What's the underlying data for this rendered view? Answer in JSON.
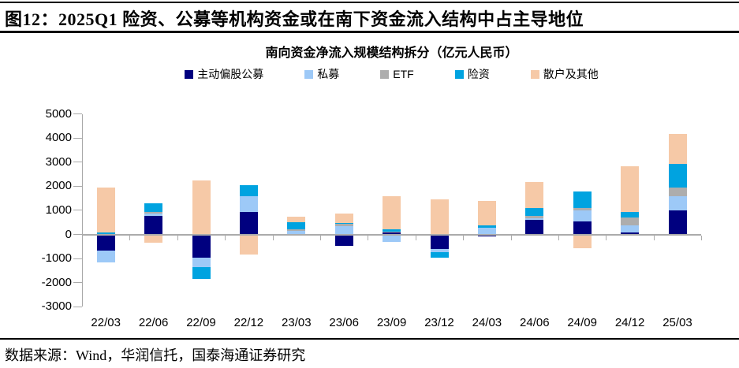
{
  "page": {
    "figure_title": "图12：2025Q1 险资、公募等机构资金或在南下资金流入结构中占主导地位",
    "source_note": "数据来源：Wind，华润信托，国泰海通证券研究"
  },
  "chart_data": {
    "type": "bar",
    "stacked": true,
    "title": "南向资金净流入规模结构拆分（亿元人民币）",
    "unit": "亿元人民币",
    "categories": [
      "22/03",
      "22/06",
      "22/09",
      "22/12",
      "23/03",
      "23/06",
      "23/09",
      "23/12",
      "24/03",
      "24/06",
      "24/09",
      "24/12",
      "25/03"
    ],
    "series": [
      {
        "name": "主动偏股公募",
        "color": "#00007F",
        "values": [
          -680,
          780,
          -950,
          920,
          -60,
          -480,
          70,
          -600,
          -80,
          610,
          530,
          70,
          990
        ]
      },
      {
        "name": "私募",
        "color": "#9DC9F7",
        "values": [
          -470,
          90,
          -420,
          680,
          150,
          330,
          -300,
          -140,
          280,
          60,
          475,
          320,
          580
        ]
      },
      {
        "name": "ETF",
        "color": "#ADADAD",
        "values": [
          0,
          60,
          0,
          0,
          70,
          100,
          60,
          0,
          0,
          110,
          80,
          310,
          370
        ]
      },
      {
        "name": "险资",
        "color": "#00A3E0",
        "values": [
          70,
          350,
          -490,
          440,
          280,
          50,
          70,
          -240,
          110,
          330,
          690,
          240,
          1000
        ]
      },
      {
        "name": "散户及其他",
        "color": "#F6C9A7",
        "values": [
          1860,
          -350,
          2230,
          -840,
          230,
          400,
          1400,
          1440,
          990,
          1060,
          -570,
          1890,
          1220
        ]
      }
    ],
    "ylim": [
      -3000,
      5000
    ],
    "ytick_step": 1000,
    "legend_position": "top",
    "grid": false
  }
}
